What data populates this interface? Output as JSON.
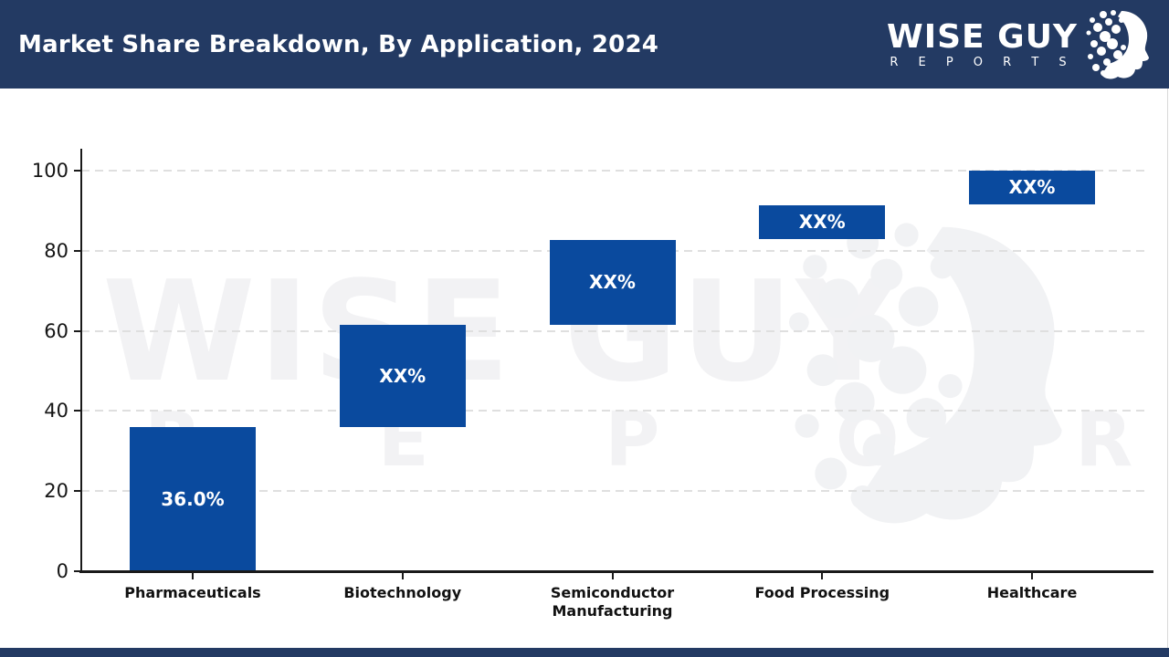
{
  "header": {
    "title": "Market Share Breakdown, By Application, 2024",
    "logo": {
      "line1": "WISE GUY",
      "line2": "R E P O R T S"
    }
  },
  "watermark": {
    "line1": "WISE GUY",
    "line2": "R E P O R T S"
  },
  "chart_data": {
    "type": "bar",
    "subtype": "waterfall",
    "title": "Market Share Breakdown, By Application, 2024",
    "categories": [
      "Pharmaceuticals",
      "Biotechnology",
      "Semiconductor\nManufacturing",
      "Food Processing",
      "Healthcare"
    ],
    "segments": [
      {
        "label": "36.0%",
        "start": 0,
        "end": 36.0
      },
      {
        "label": "XX%",
        "start": 36.0,
        "end": 61.6
      },
      {
        "label": "XX%",
        "start": 61.6,
        "end": 82.8
      },
      {
        "label": "XX%",
        "start": 83.0,
        "end": 91.3
      },
      {
        "label": "XX%",
        "start": 91.6,
        "end": 100.0
      }
    ],
    "xlabel": "",
    "ylabel": "",
    "ylim": [
      0,
      100
    ],
    "yticks": [
      0,
      20,
      40,
      60,
      80,
      100
    ],
    "grid": "horizontal-dashed",
    "legend": "none",
    "bar_color": "#0a4a9e",
    "value_label_color": "#ffffff"
  },
  "colors": {
    "header_bg": "#233a63",
    "bar": "#0a4a9e",
    "grid": "#dfdfdf",
    "axis": "#1a1a1a",
    "watermark": "#f2f2f4"
  }
}
